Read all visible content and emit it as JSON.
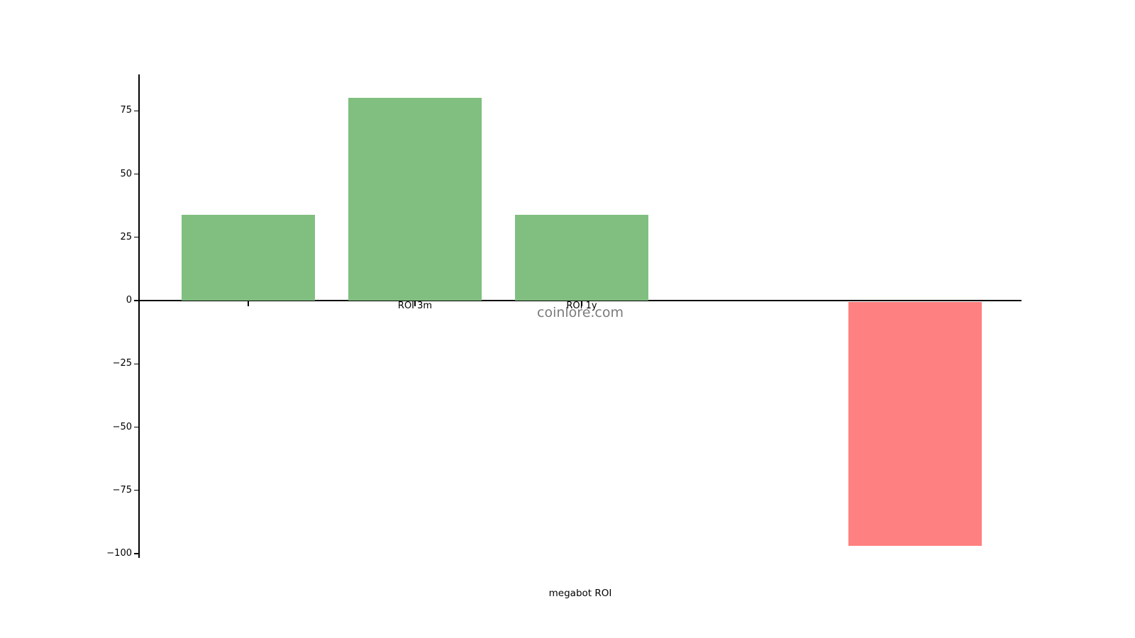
{
  "page": {
    "background": "#ffffff"
  },
  "chart_data": {
    "type": "bar",
    "title": "",
    "xlabel": "megabot ROI",
    "ylabel": "",
    "watermark": "coinlore.com",
    "categories": [
      "",
      "ROI 3m",
      "ROI 1y",
      "",
      ""
    ],
    "values": [
      34,
      80,
      34,
      null,
      -96.4
    ],
    "x_ticks_visible": [
      0,
      1,
      2
    ],
    "yticks": [
      75,
      50,
      25,
      0,
      -25,
      -50,
      -75,
      -100
    ],
    "ytick_labels": [
      "75",
      "50",
      "25",
      "0",
      "−25",
      "−50",
      "−75",
      "−100"
    ],
    "ylim": [
      -101,
      89
    ],
    "grid": false,
    "legend": false,
    "positive_color": "#80bf80",
    "negative_color": "#ff8080",
    "axis_color": "#000000",
    "text_color": "#000000",
    "watermark_color": "#7b7b7b"
  }
}
